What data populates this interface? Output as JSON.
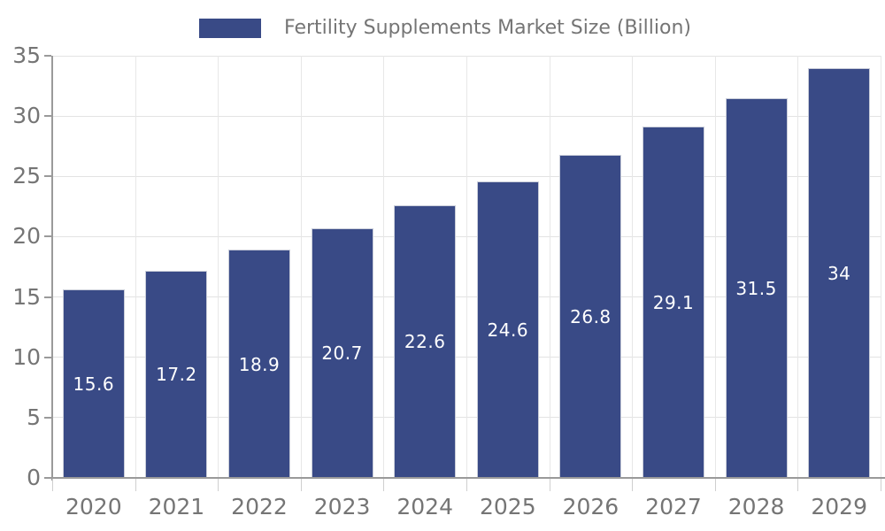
{
  "legend": {
    "label": "Fertility Supplements Market Size (Billion)"
  },
  "chart_data": {
    "type": "bar",
    "title": "Fertility Supplements Market Size (Billion)",
    "categories": [
      "2020",
      "2021",
      "2022",
      "2023",
      "2024",
      "2025",
      "2026",
      "2027",
      "2028",
      "2029"
    ],
    "series": [
      {
        "name": "Fertility Supplements Market Size (Billion)",
        "values": [
          15.6,
          17.2,
          18.9,
          20.7,
          22.6,
          24.6,
          26.8,
          29.1,
          31.5,
          34
        ]
      }
    ],
    "value_labels": [
      "15.6",
      "17.2",
      "18.9",
      "20.7",
      "22.6",
      "24.6",
      "26.8",
      "29.1",
      "31.5",
      "34"
    ],
    "xlabel": "",
    "ylabel": "",
    "ylim": [
      0,
      35
    ],
    "yticks": [
      0,
      5,
      10,
      15,
      20,
      25,
      30,
      35
    ],
    "grid": true,
    "legend_position": "top",
    "colors": {
      "bar": "#394A86",
      "bar_edge": "#C9CDD9",
      "grid_h": "#E3E3E3",
      "grid_v": "#E7E7E7",
      "axis": "#9A9A9A",
      "tick": "#CFCFCF",
      "text": "#757575",
      "value_label": "#FFFFFF",
      "background": "#FFFFFF"
    }
  }
}
